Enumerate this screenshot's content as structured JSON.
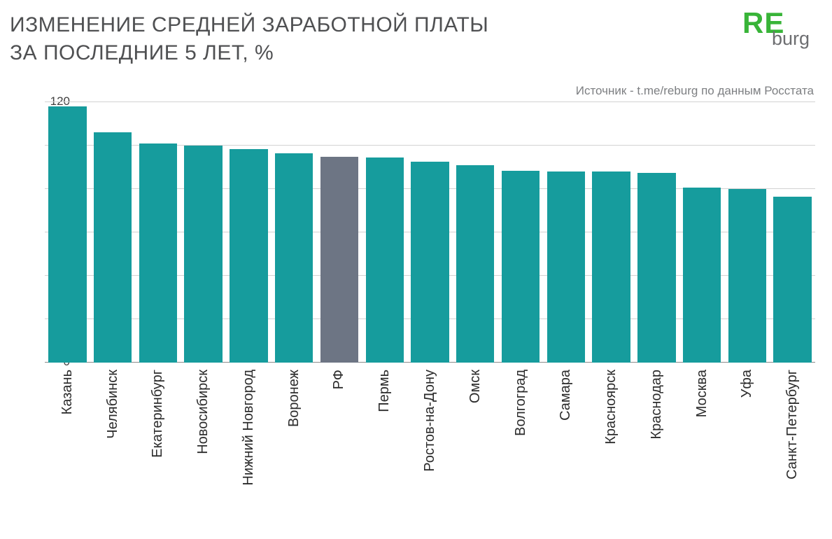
{
  "header": {
    "title_line1": "ИЗМЕНЕНИЕ СРЕДНЕЙ ЗАРАБОТНОЙ ПЛАТЫ",
    "title_line2": "ЗА ПОСЛЕДНИЕ 5 ЛЕТ, %",
    "logo_top": "RE",
    "logo_bottom": "burg"
  },
  "source": "Источник - t.me/reburg по данным Росстата",
  "colors": {
    "bar": "#169c9d",
    "bar_highlight": "#6d7584",
    "logo_green": "#38b438",
    "logo_gray": "#6d6e71",
    "gridline": "#d2d2d2",
    "axis_line": "#8a8a8a"
  },
  "chart_data": {
    "type": "bar",
    "title": "ИЗМЕНЕНИЕ СРЕДНЕЙ ЗАРАБОТНОЙ ПЛАТЫ ЗА ПОСЛЕДНИЕ 5 ЛЕТ, %",
    "xlabel": "",
    "ylabel": "",
    "ylim": [
      0,
      120
    ],
    "yticks": [
      0,
      20,
      40,
      60,
      80,
      100,
      120
    ],
    "grid": true,
    "legend": false,
    "categories": [
      "Казань",
      "Челябинск",
      "Екатеринбург",
      "Новосибирск",
      "Нижний Новгород",
      "Воронеж",
      "РФ",
      "Пермь",
      "Ростов-на-Дону",
      "Омск",
      "Волгоград",
      "Самара",
      "Красноярск",
      "Краснодар",
      "Москва",
      "Уфа",
      "Санкт-Петербург"
    ],
    "values": [
      118,
      106,
      101,
      100,
      98.5,
      96.5,
      95,
      94.5,
      92.5,
      91,
      88.5,
      88,
      88,
      87.5,
      80.5,
      80,
      76.5
    ],
    "highlight_category": "РФ"
  }
}
